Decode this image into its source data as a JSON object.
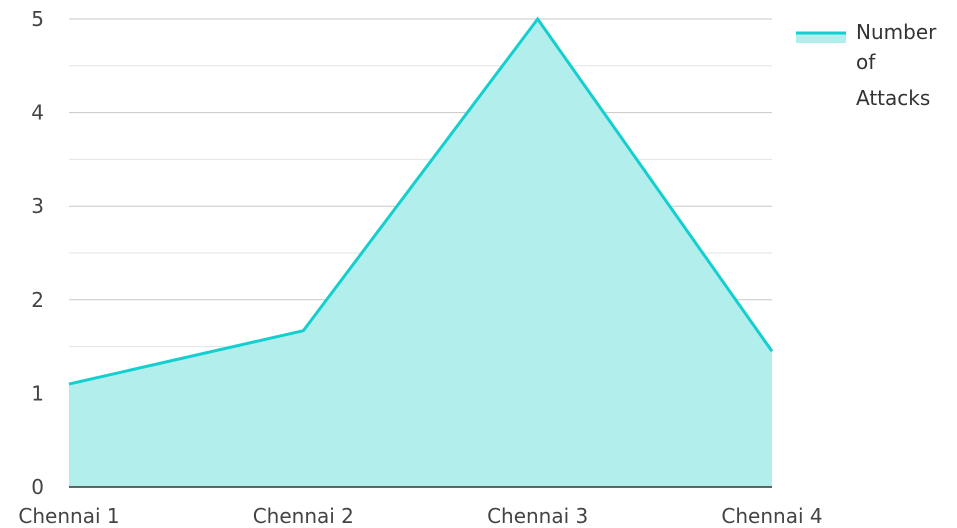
{
  "chart_data": {
    "type": "area",
    "categories": [
      "Chennai 1",
      "Chennai 2",
      "Chennai 3",
      "Chennai 4"
    ],
    "series": [
      {
        "name": "Number of Attacks",
        "values": [
          1.1,
          1.67,
          5,
          1.45
        ]
      }
    ],
    "y_ticks": [
      "0",
      "1",
      "2",
      "3",
      "4",
      "5"
    ],
    "ylim": [
      0,
      5
    ],
    "grid": true,
    "legend": {
      "position": "top-right",
      "lines": [
        "Number",
        "of",
        "Attacks"
      ]
    },
    "colors": {
      "line": "#14cfcf",
      "fill": "#b2eeec",
      "grid_major": "#c7c7c7",
      "grid_minor": "#e3e3e3",
      "axis": "#333333"
    }
  }
}
